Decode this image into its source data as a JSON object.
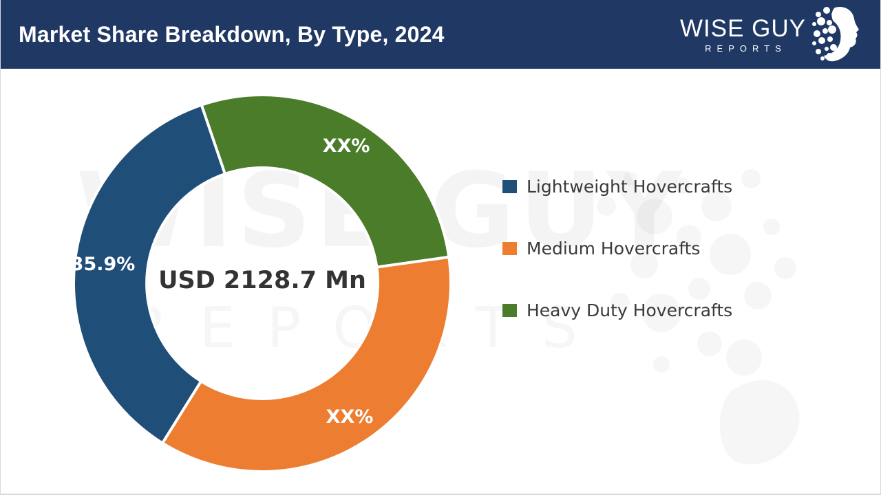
{
  "header": {
    "title": "Market Share Breakdown, By Type, 2024",
    "logo": {
      "line1": "WISE GUY",
      "line2": "REPORTS"
    }
  },
  "watermark": {
    "line1": "WISE GUY",
    "line2": "REPORTS"
  },
  "chart_data": {
    "type": "pie",
    "subtype": "donut",
    "title": "Market Share Breakdown, By Type, 2024",
    "center_label": "USD 2128.7 Mn",
    "legend_position": "right",
    "rotation_deg": -18.8,
    "draw_order": [
      2,
      1,
      0
    ],
    "segments": [
      {
        "name": "Lightweight Hovercrafts",
        "label": "35.9%",
        "value": 35.9,
        "value_estimated": false,
        "color": "#1f4e79"
      },
      {
        "name": "Medium Hovercrafts",
        "label": "XX%",
        "value": 36.1,
        "value_estimated": true,
        "color": "#ed7d31"
      },
      {
        "name": "Heavy Duty Hovercrafts",
        "label": "XX%",
        "value": 28.0,
        "value_estimated": true,
        "color": "#4a7c2a"
      }
    ],
    "colors": {
      "header_navy": "#203864",
      "border_gray": "#d9d9d9",
      "center_text": "#333333",
      "legend_text": "#3a3a3a"
    }
  }
}
